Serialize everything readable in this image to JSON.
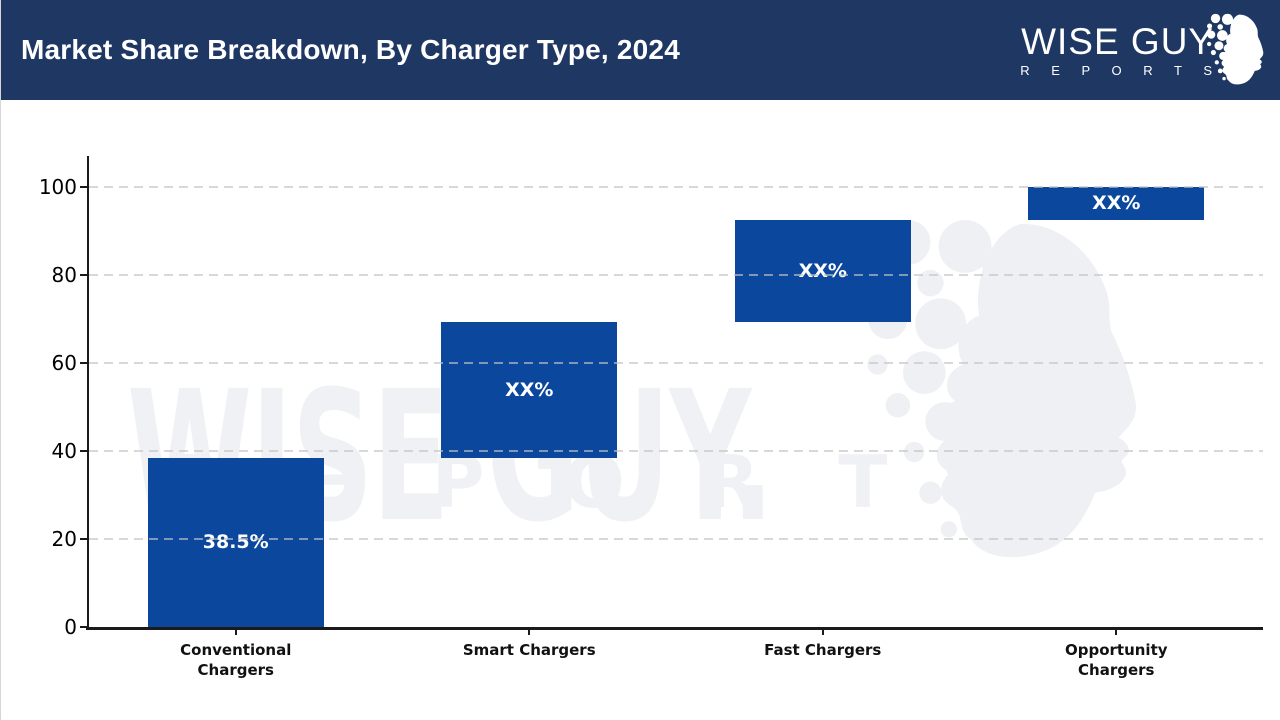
{
  "header": {
    "title": "Market Share Breakdown, By Charger Type, 2024",
    "bg_color": "#1f3763",
    "logo": {
      "name": "WISE GUY",
      "sub": "R E P O R T S"
    }
  },
  "watermark": {
    "line1": "WISE GUY.",
    "line2": "R E P O R T S"
  },
  "chart_data": {
    "type": "bar",
    "subtype": "waterfall",
    "title": "Market Share Breakdown, By Charger Type, 2024",
    "categories": [
      "Conventional\nChargers",
      "Smart Chargers",
      "Fast Chargers",
      "Opportunity\nChargers"
    ],
    "segments": [
      {
        "category": "Conventional Chargers",
        "start": 0,
        "end": 38.5,
        "label": "38.5%"
      },
      {
        "category": "Smart Chargers",
        "start": 38.5,
        "end": 69.3,
        "label": "XX%"
      },
      {
        "category": "Fast Chargers",
        "start": 69.3,
        "end": 92.5,
        "label": "XX%"
      },
      {
        "category": "Opportunity Chargers",
        "start": 92.5,
        "end": 100,
        "label": "XX%"
      }
    ],
    "y_ticks": [
      0,
      20,
      40,
      60,
      80,
      100
    ],
    "ylim": [
      0,
      107
    ],
    "xlabel": "",
    "ylabel": "",
    "grid": "horizontal-dashed",
    "legend": "none",
    "bar_color": "#0c479e",
    "value_label_color": "#ffffff"
  }
}
